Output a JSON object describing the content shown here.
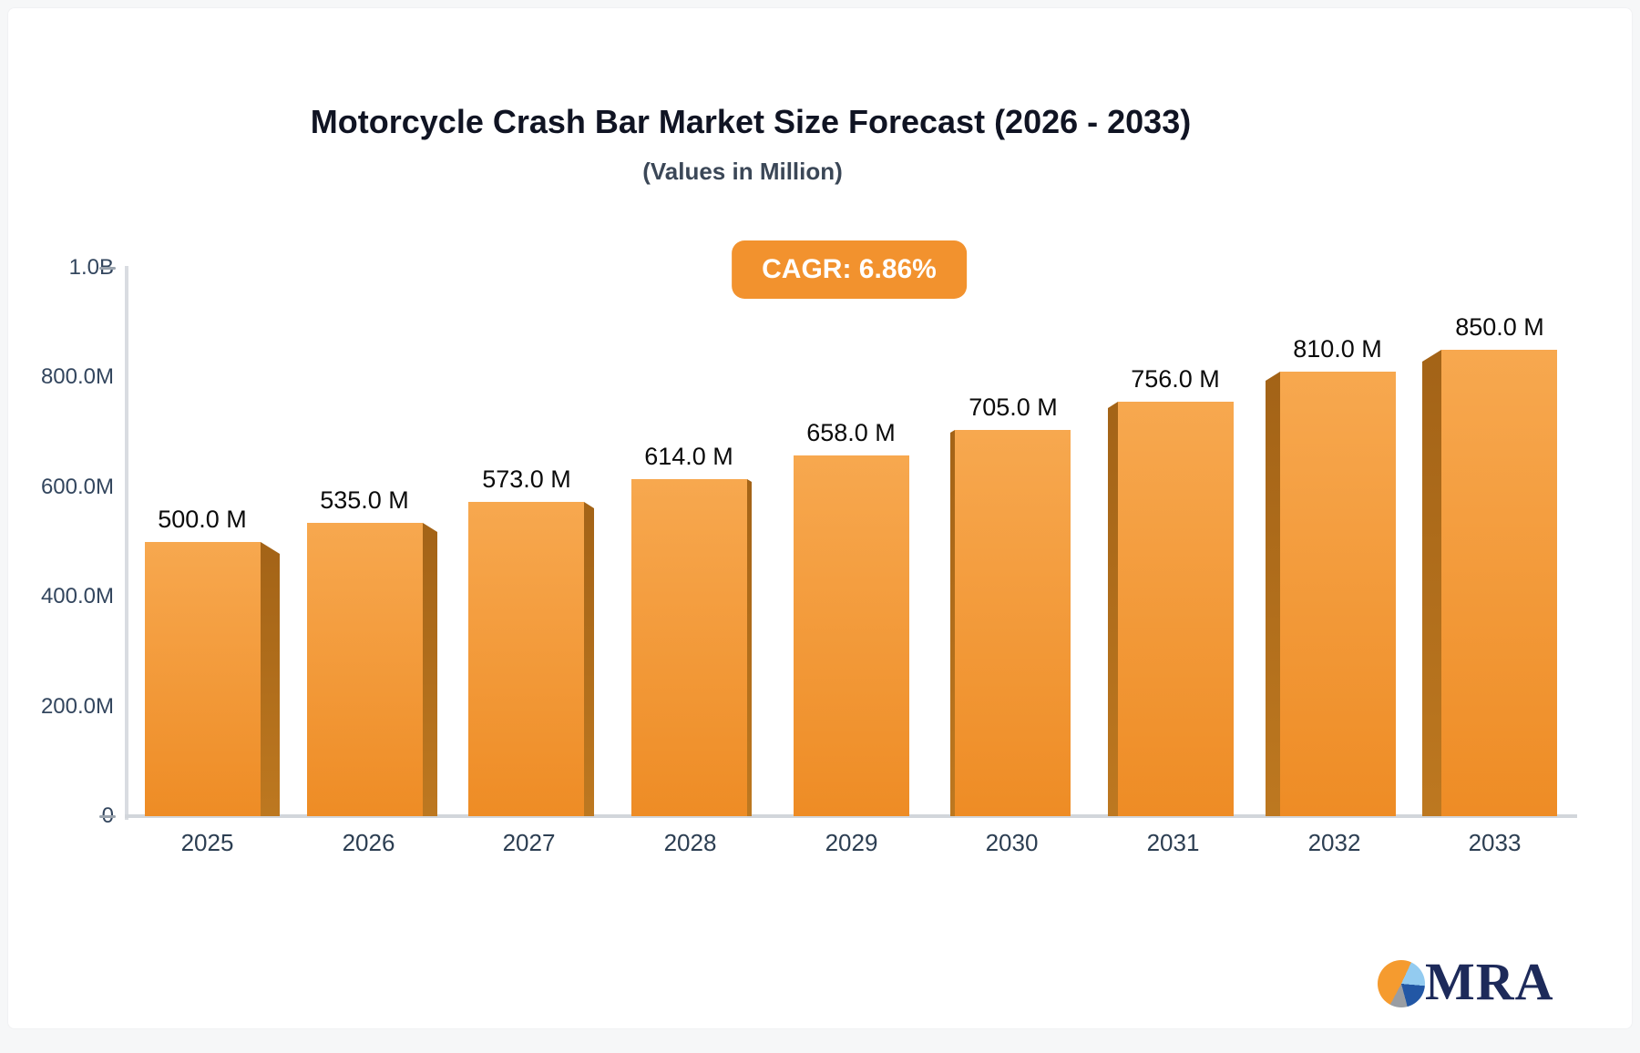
{
  "header": {
    "title": "Motorcycle Crash Bar Market Size Forecast (2026 - 2033)",
    "subtitle": "(Values in Million)"
  },
  "badge": {
    "label": "CAGR: 6.86%"
  },
  "chart_data": {
    "type": "bar",
    "title": "Motorcycle Crash Bar Market Size Forecast (2026 - 2033)",
    "subtitle": "(Values in Million)",
    "categories": [
      "2025",
      "2026",
      "2027",
      "2028",
      "2029",
      "2030",
      "2031",
      "2032",
      "2033"
    ],
    "values": [
      500,
      535,
      573,
      614,
      658,
      705,
      756,
      810,
      850
    ],
    "value_labels": [
      "500.0 M",
      "535.0 M",
      "573.0 M",
      "614.0 M",
      "658.0 M",
      "705.0 M",
      "756.0 M",
      "810.0 M",
      "850.0 M"
    ],
    "y_axis": {
      "min": 0,
      "max": 1000,
      "ticks": [
        {
          "label": "1.0B",
          "value": 1000
        },
        {
          "label": "800.0M",
          "value": 800
        },
        {
          "label": "600.0M",
          "value": 600
        },
        {
          "label": "400.0M",
          "value": 400
        },
        {
          "label": "200.0M",
          "value": 200
        },
        {
          "label": "0",
          "value": 0
        }
      ]
    },
    "grid": false,
    "legend": false,
    "colors": {
      "bar_front_top": "#f7a84f",
      "bar_front_bottom": "#ee8c25",
      "bar_side_top": "#a36317",
      "bar_side_bottom": "#bd7820",
      "accent": "#f2922e"
    }
  },
  "logo": {
    "text": "MRA",
    "colors": {
      "navy": "#1d2a5a",
      "orange": "#f59b2f",
      "light_blue": "#93cbf0",
      "blue": "#2257a5",
      "gray": "#999da3"
    }
  }
}
